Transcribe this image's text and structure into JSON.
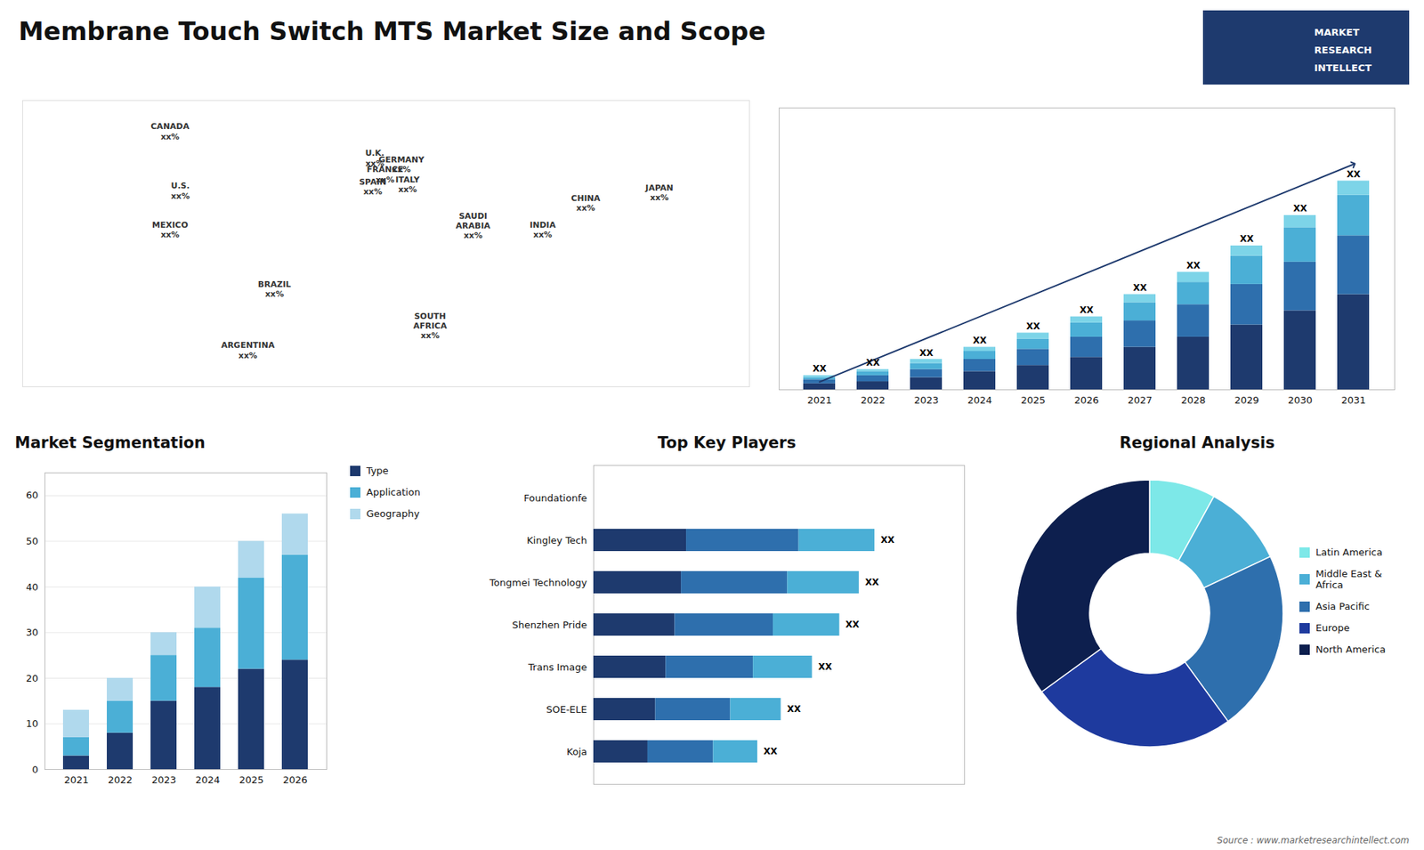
{
  "title": "Membrane Touch Switch MTS Market Size and Scope",
  "annotations": [
    "MARKET",
    "RESEARCH",
    "INTELLECT",
    "Source : www.marketresearchintellect.com"
  ],
  "chart_data": [
    {
      "type": "map",
      "categories": [
        "CANADA\nxx%",
        "U.S.\nxx%",
        "MEXICO\nxx%",
        "BRAZIL\nxx%",
        "ARGENTINA\nxx%",
        "U.K.\nxx%",
        "FRANCE\nxx%",
        "SPAIN\nxx%",
        "GERMANY\nxx%",
        "ITALY\nxx%",
        "SAUDI\nARABIA\nxx%",
        "SOUTH\nAFRICA\nxx%",
        "CHINA\nxx%",
        "INDIA\nxx%",
        "JAPAN\nxx%"
      ],
      "x": [
        -103,
        -98,
        -103,
        -52,
        -65,
        -3,
        2,
        -4,
        10,
        13,
        45,
        24,
        100,
        79,
        136
      ],
      "y": [
        67,
        38,
        19,
        -10,
        -40,
        54,
        46,
        40,
        51,
        41,
        21,
        -28,
        32,
        19,
        37
      ],
      "xlim": [
        -175,
        180
      ],
      "ylim": [
        -58,
        82
      ],
      "tick_labels": false
    },
    {
      "type": "bar",
      "stacked": true,
      "categories": [
        2021,
        2022,
        2023,
        2024,
        2025,
        2026,
        2027,
        2028,
        2029,
        2030,
        2031
      ],
      "series": [
        {
          "color": "#1e3a6e",
          "values": [
            3,
            4,
            6,
            9,
            12,
            16,
            21,
            26,
            32,
            39,
            47
          ]
        },
        {
          "color": "#2e6fad",
          "values": [
            2,
            3,
            4,
            6,
            8,
            10,
            13,
            16,
            20,
            24,
            29
          ]
        },
        {
          "color": "#4bafd6",
          "values": [
            1,
            2,
            3,
            4,
            5,
            7,
            9,
            11,
            14,
            17,
            20
          ]
        },
        {
          "color": "#7dd4e8",
          "values": [
            1,
            1,
            2,
            2,
            3,
            3,
            4,
            5,
            5,
            6,
            7
          ]
        },
        {
          "type": "line",
          "marker": "arrow",
          "color": "#1e3a6e",
          "values": [
            3.85,
            null,
            null,
            null,
            null,
            null,
            null,
            null,
            null,
            null,
            111.24
          ]
        }
      ],
      "data_labels": true,
      "value_labels": [
        "XX",
        "XX",
        "XX",
        "XX",
        "XX",
        "XX",
        "XX",
        "XX",
        "XX",
        "XX",
        "XX"
      ],
      "ylim": [
        0,
        139.05
      ],
      "tick_labels": "x",
      "grid": false
    },
    {
      "type": "bar",
      "title": "Market Segmentation",
      "stacked": true,
      "categories": [
        2021,
        2022,
        2023,
        2024,
        2025,
        2026
      ],
      "series": [
        {
          "name": "Type",
          "color": "#1e3a6e",
          "values": [
            3,
            8,
            15,
            18,
            22,
            24
          ]
        },
        {
          "name": "Application",
          "color": "#4bafd6",
          "values": [
            4,
            7,
            10,
            13,
            20,
            23
          ]
        },
        {
          "name": "Geography",
          "color": "#b0d9ed",
          "values": [
            6,
            5,
            5,
            9,
            8,
            9
          ]
        }
      ],
      "ylim": [
        0,
        65
      ],
      "yticks": [
        0,
        10,
        20,
        30,
        40,
        50,
        60
      ],
      "grid": true,
      "legend": "right"
    },
    {
      "type": "bar",
      "title": "Top Key Players",
      "orientation": "horizontal",
      "stacked": true,
      "categories": [
        "Foundationfe",
        "Kingley Tech",
        "Tongmei Technology",
        "Shenzhen Pride",
        "Trans Image",
        "SOE-ELE",
        "Koja"
      ],
      "series": [
        {
          "color": "#1e3a6e",
          "values": [
            0,
            23.76,
            22.44,
            20.79,
            18.48,
            15.84,
            13.86
          ]
        },
        {
          "color": "#2e6fad",
          "values": [
            0,
            28.8,
            27.2,
            25.2,
            22.4,
            19.2,
            16.8
          ]
        },
        {
          "color": "#4bafd6",
          "values": [
            0,
            19.44,
            18.36,
            17.01,
            15.12,
            12.96,
            11.34
          ]
        }
      ],
      "data_labels": true,
      "value_labels": [
        null,
        "XX",
        "XX",
        "XX",
        "XX",
        "XX",
        "XX"
      ],
      "xlim": [
        0,
        95
      ],
      "tick_labels": "y",
      "grid": false
    },
    {
      "type": "pie",
      "title": "Regional Analysis",
      "categories": [
        "Latin America",
        "Middle East &\nAfrica",
        "Asia Pacific",
        "Europe",
        "North America"
      ],
      "values": [
        8,
        10,
        22,
        25,
        35
      ],
      "colors": [
        "#7de8e8",
        "#4bafd6",
        "#2e6fad",
        "#1e3a9e",
        "#0d1f4e"
      ],
      "legend": "right"
    }
  ]
}
